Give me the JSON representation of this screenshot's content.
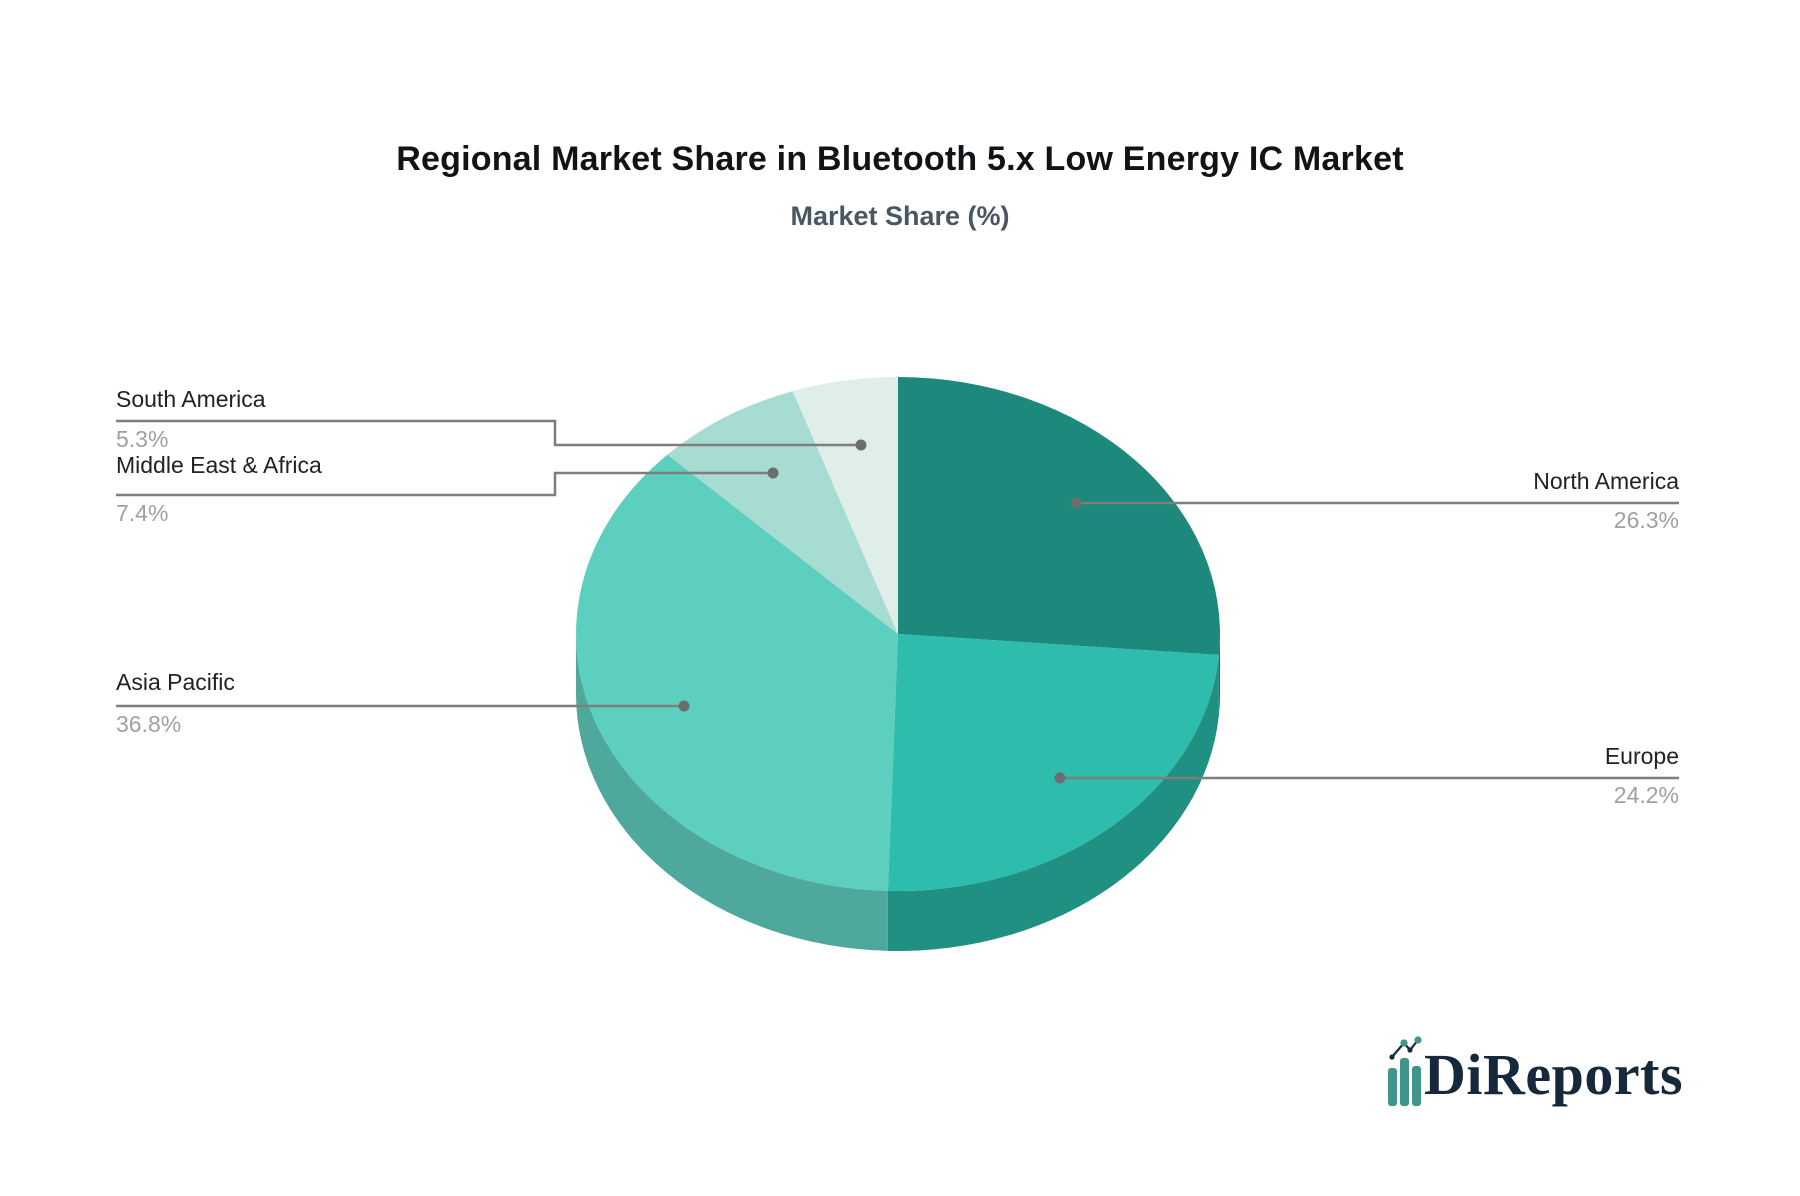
{
  "chart_data": {
    "type": "pie",
    "title": "Regional Market Share in Bluetooth 5.x Low Energy IC Market",
    "subtitle": "Market Share (%)",
    "categories": [
      "North America",
      "Europe",
      "Asia Pacific",
      "Middle East & Africa",
      "South America"
    ],
    "values": [
      26.3,
      24.2,
      36.8,
      7.4,
      5.3
    ],
    "percent_labels": [
      "26.3%",
      "24.2%",
      "36.8%",
      "7.4%",
      "5.3%"
    ],
    "colors": [
      "#1c897c",
      "#2ebcad",
      "#5dcfbf",
      "#a7dcd2",
      "#dfeee9"
    ],
    "side_colors": [
      "#156f64",
      "#1f9082",
      "#4ea89b",
      "#86c4b9",
      "#c2ded6"
    ],
    "start_angle_deg": 0,
    "direction": "clockwise",
    "style": "3d",
    "legend_position": "none",
    "labels_style": "callout",
    "callout_line_color": "#7e7e7e",
    "callout_dot_color": "#6d6d6d",
    "label_color": "#222222",
    "percent_color": "#9fa0a0"
  },
  "logo": {
    "text": "DiReports",
    "icon": "bar-line-chart-icon",
    "text_color": "#16293c",
    "accent_color": "#3e968b"
  }
}
